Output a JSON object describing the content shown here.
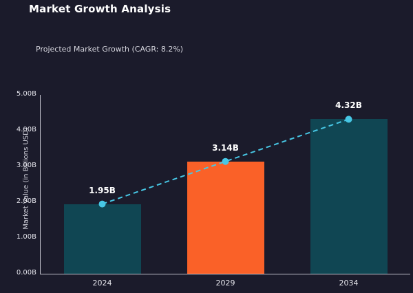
{
  "page": {
    "background": "#1b1b2b"
  },
  "header": {
    "title": "Market Growth Analysis",
    "subtitle": "Projected Market Growth (CAGR: 8.2%)"
  },
  "chart_data": {
    "type": "bar",
    "title": "Market Growth Analysis",
    "subtitle": "Projected Market Growth (CAGR: 8.2%)",
    "categories": [
      "2024",
      "2029",
      "2034"
    ],
    "values": [
      1.95,
      3.14,
      4.32
    ],
    "value_labels": [
      "1.95B",
      "3.14B",
      "4.32B"
    ],
    "bar_colors": [
      "#104653",
      "#fa6128",
      "#104653"
    ],
    "ylabel": "Market Value (in Billions USD)",
    "xlabel": "",
    "ylim": [
      0,
      5
    ],
    "yticks": [
      0,
      1,
      2,
      3,
      4,
      5
    ],
    "ytick_labels": [
      "0.00B",
      "1.00B",
      "2.00B",
      "3.00B",
      "4.00B",
      "5.00B"
    ],
    "trend_line": {
      "color": "#47c7e5",
      "style": "dashed",
      "marker": "circle"
    },
    "grid": false,
    "legend": false,
    "background": "#1b1b2b"
  }
}
